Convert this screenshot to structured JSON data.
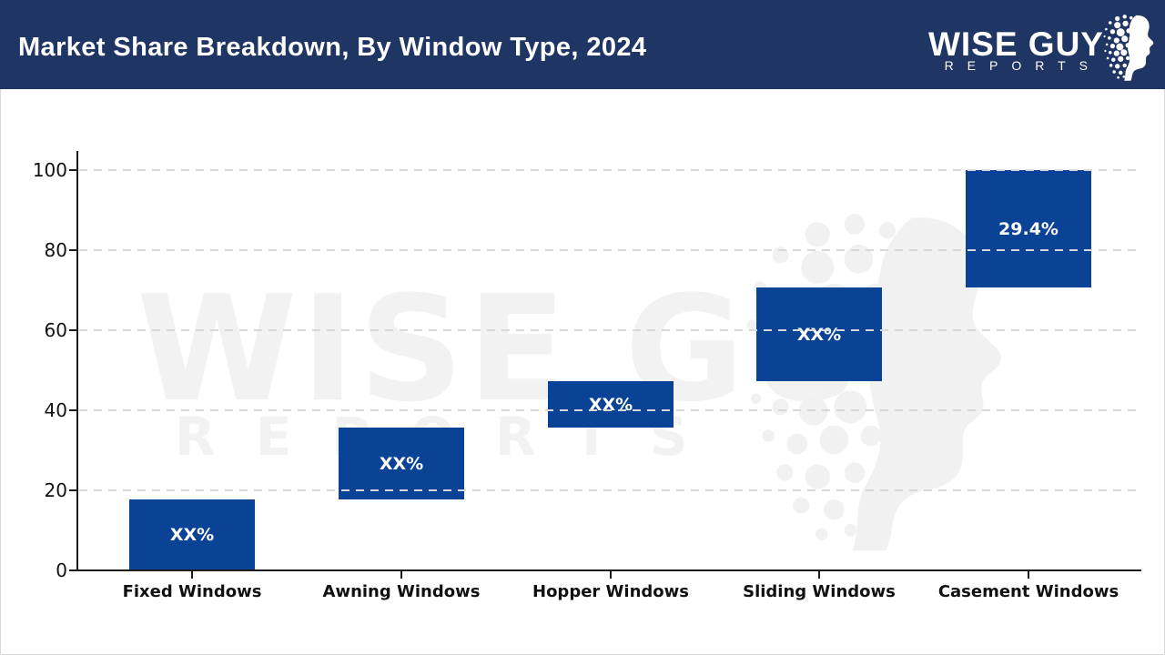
{
  "header": {
    "title": "Market Share Breakdown, By Window Type, 2024",
    "logo": {
      "name": "WISE GUY",
      "tagline": "REPORTS"
    }
  },
  "watermark": {
    "line1": "WISE GUY",
    "line2": "REPORTS"
  },
  "colors": {
    "header_bg": "#1f3564",
    "bar": "#0a4296",
    "bar_label": "#ffffff",
    "gridline": "#d8d8d8",
    "axis": "#1c1c1c",
    "watermark": "#f2f2f2"
  },
  "chart_data": {
    "type": "bar",
    "subtype": "waterfall",
    "title": "Market Share Breakdown, By Window Type, 2024",
    "categories": [
      "Fixed Windows",
      "Awning Windows",
      "Hopper Windows",
      "Sliding Windows",
      "Casement Windows"
    ],
    "bars": [
      {
        "category": "Fixed Windows",
        "start": 0,
        "end": 17.8,
        "label": "XX%"
      },
      {
        "category": "Awning Windows",
        "start": 17.8,
        "end": 35.6,
        "label": "XX%"
      },
      {
        "category": "Hopper Windows",
        "start": 35.6,
        "end": 47.2,
        "label": "XX%"
      },
      {
        "category": "Sliding Windows",
        "start": 47.2,
        "end": 70.6,
        "label": "XX%"
      },
      {
        "category": "Casement Windows",
        "start": 70.6,
        "end": 100,
        "label": "29.4%"
      }
    ],
    "xlabel": "",
    "ylabel": "",
    "ylim": [
      0,
      100
    ],
    "yticks": [
      0,
      20,
      40,
      60,
      80,
      100
    ],
    "grid": {
      "axis": "y",
      "style": "dashed"
    },
    "legend": false
  }
}
